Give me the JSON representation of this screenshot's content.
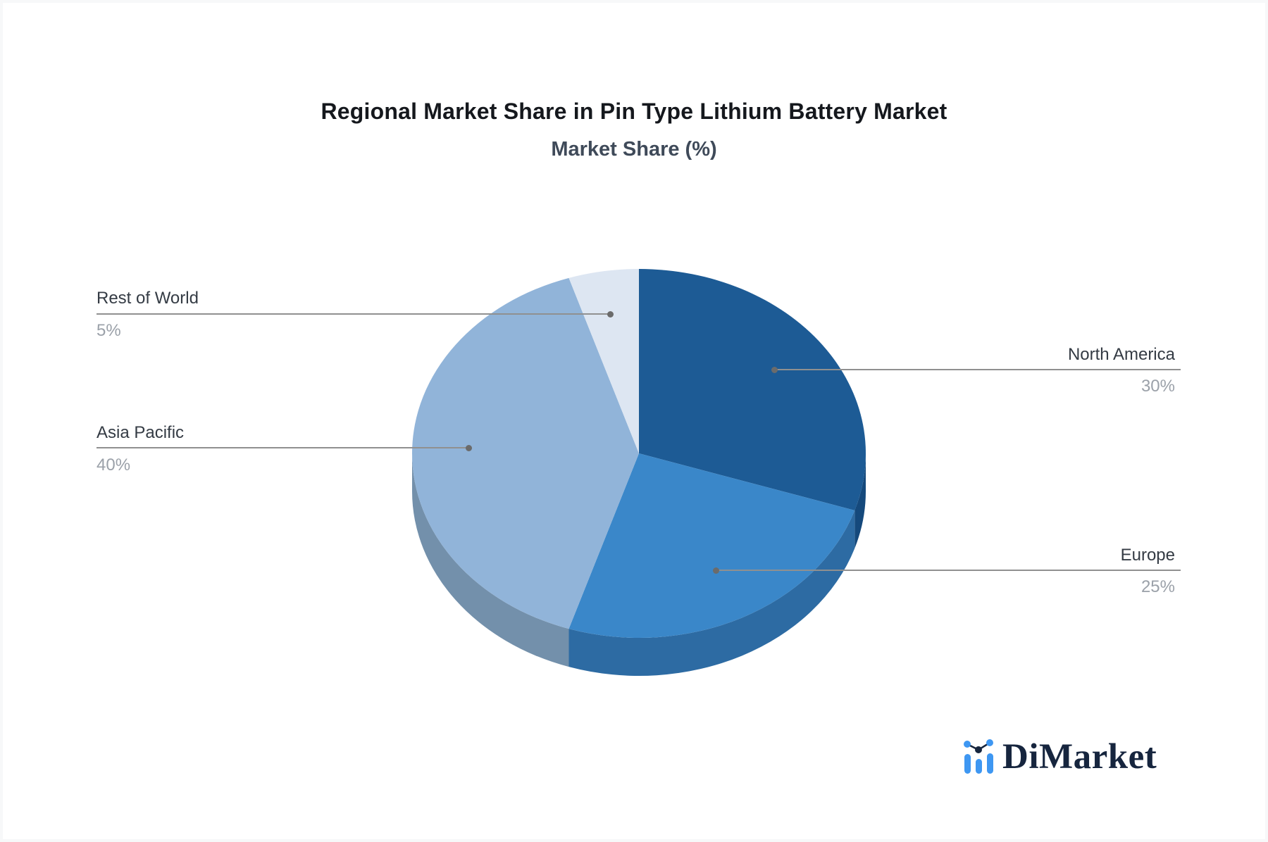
{
  "page": {
    "title": "Regional Market Share in Pin Type Lithium Battery Market",
    "subtitle": "Market Share (%)"
  },
  "logo": {
    "text": "DiMarket",
    "bar_color": "#3e97f2",
    "line_color": "#16253e",
    "dot_color": "#3e97f2",
    "mid_dot_color": "#16253e",
    "text_color": "#16253e"
  },
  "chart_data": {
    "type": "pie",
    "style": "3d",
    "title": "Regional Market Share in Pin Type Lithium Battery Market",
    "subtitle": "Market Share (%)",
    "unit": "%",
    "start_angle_deg": -90,
    "direction": "clockwise",
    "legend": "none",
    "leader_line_color": "#909090",
    "label_text_color": "#343b44",
    "value_text_color": "#9ba1a9",
    "slices": [
      {
        "label": "North America",
        "value": 30,
        "display": "30%",
        "color": "#1d5b95",
        "rim_color": "#15497c",
        "label_side": "right"
      },
      {
        "label": "Europe",
        "value": 25,
        "display": "25%",
        "color": "#3a87c9",
        "rim_color": "#2d6ba3",
        "label_side": "right"
      },
      {
        "label": "Asia Pacific",
        "value": 40,
        "display": "40%",
        "color": "#91b4d9",
        "rim_color": "#7390ab",
        "label_side": "left"
      },
      {
        "label": "Rest of World",
        "value": 5,
        "display": "5%",
        "color": "#dde6f2",
        "rim_color": "#b8c6d6",
        "label_side": "left"
      }
    ]
  }
}
